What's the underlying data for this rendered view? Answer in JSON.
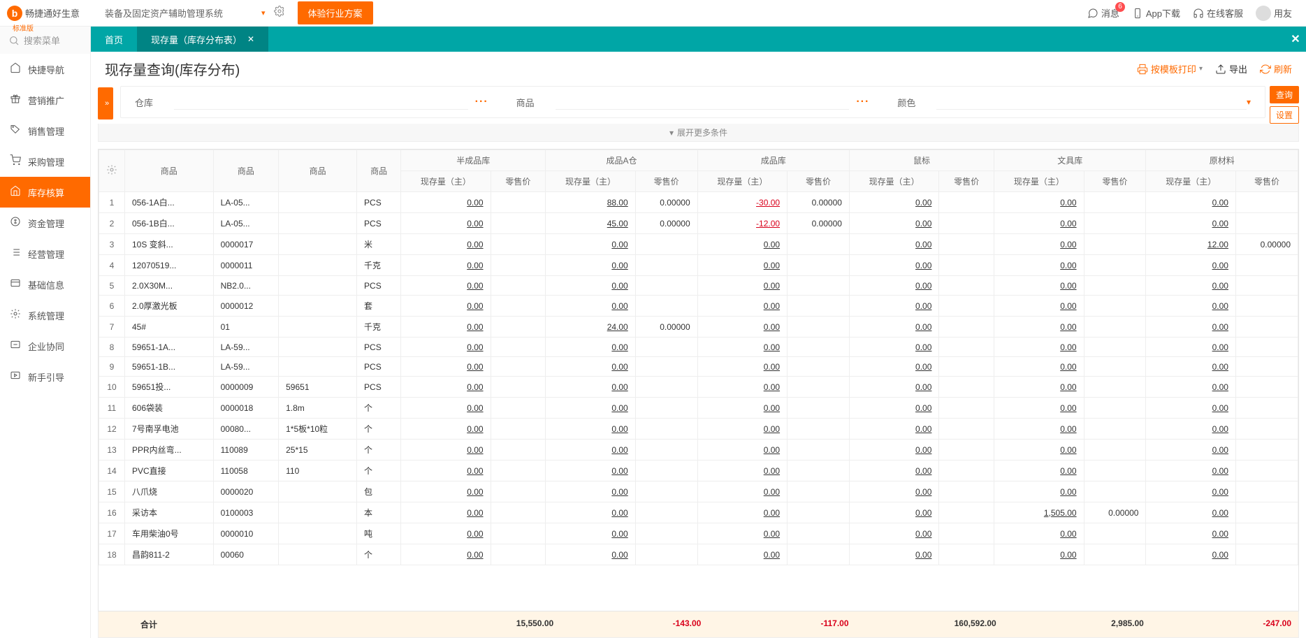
{
  "header": {
    "brand": "畅捷通好生意",
    "brand_sub": "标准版",
    "system_name": "装备及固定资产辅助管理系统",
    "try_btn": "体验行业方案",
    "msg_label": "消息",
    "msg_count": "6",
    "app_dl": "App下载",
    "cs": "在线客服",
    "user": "用友"
  },
  "sidebar": {
    "search": "搜索菜单",
    "items": [
      {
        "label": "快捷导航",
        "icon": "home"
      },
      {
        "label": "营销推广",
        "icon": "gift"
      },
      {
        "label": "销售管理",
        "icon": "tag"
      },
      {
        "label": "采购管理",
        "icon": "cart"
      },
      {
        "label": "库存核算",
        "icon": "house",
        "active": true
      },
      {
        "label": "资金管理",
        "icon": "coin"
      },
      {
        "label": "经营管理",
        "icon": "list"
      },
      {
        "label": "基础信息",
        "icon": "card"
      },
      {
        "label": "系统管理",
        "icon": "gear"
      },
      {
        "label": "企业协同",
        "icon": "link"
      },
      {
        "label": "新手引导",
        "icon": "play"
      }
    ]
  },
  "tabs": {
    "home": "首页",
    "active": "现存量（库存分布表）"
  },
  "page": {
    "title": "现存量查询(库存分布)",
    "print": "按模板打印",
    "export": "导出",
    "refresh": "刷新"
  },
  "filters": {
    "warehouse": "仓库",
    "product": "商品",
    "color": "颜色",
    "search_btn": "查询",
    "setting_btn": "设置",
    "expand": "展开更多条件"
  },
  "table": {
    "group_headers": [
      "半成品库",
      "成品A仓",
      "成品库",
      "鼠标",
      "文具库",
      "原材料"
    ],
    "col_product": "商品",
    "sub_qty": "现存量（主）",
    "sub_price": "零售价",
    "rows": [
      {
        "p1": "056-1A白...",
        "p2": "LA-05...",
        "p3": "",
        "unit": "PCS",
        "v": [
          [
            "0.00",
            ""
          ],
          [
            "88.00",
            "0.00000"
          ],
          [
            "-30.00",
            "0.00000"
          ],
          [
            "0.00",
            ""
          ],
          [
            "0.00",
            ""
          ],
          [
            "0.00",
            ""
          ]
        ]
      },
      {
        "p1": "056-1B白...",
        "p2": "LA-05...",
        "p3": "",
        "unit": "PCS",
        "v": [
          [
            "0.00",
            ""
          ],
          [
            "45.00",
            "0.00000"
          ],
          [
            "-12.00",
            "0.00000"
          ],
          [
            "0.00",
            ""
          ],
          [
            "0.00",
            ""
          ],
          [
            "0.00",
            ""
          ]
        ]
      },
      {
        "p1": "10S 变斜...",
        "p2": "0000017",
        "p3": "",
        "unit": "米",
        "v": [
          [
            "0.00",
            ""
          ],
          [
            "0.00",
            ""
          ],
          [
            "0.00",
            ""
          ],
          [
            "0.00",
            ""
          ],
          [
            "0.00",
            ""
          ],
          [
            "12.00",
            "0.00000"
          ]
        ]
      },
      {
        "p1": "12070519...",
        "p2": "0000011",
        "p3": "",
        "unit": "千克",
        "v": [
          [
            "0.00",
            ""
          ],
          [
            "0.00",
            ""
          ],
          [
            "0.00",
            ""
          ],
          [
            "0.00",
            ""
          ],
          [
            "0.00",
            ""
          ],
          [
            "0.00",
            ""
          ]
        ]
      },
      {
        "p1": "2.0X30M...",
        "p2": "NB2.0...",
        "p3": "",
        "unit": "PCS",
        "v": [
          [
            "0.00",
            ""
          ],
          [
            "0.00",
            ""
          ],
          [
            "0.00",
            ""
          ],
          [
            "0.00",
            ""
          ],
          [
            "0.00",
            ""
          ],
          [
            "0.00",
            ""
          ]
        ]
      },
      {
        "p1": "2.0厚激光板",
        "p2": "0000012",
        "p3": "",
        "unit": "套",
        "v": [
          [
            "0.00",
            ""
          ],
          [
            "0.00",
            ""
          ],
          [
            "0.00",
            ""
          ],
          [
            "0.00",
            ""
          ],
          [
            "0.00",
            ""
          ],
          [
            "0.00",
            ""
          ]
        ]
      },
      {
        "p1": "45#",
        "p2": "01",
        "p3": "",
        "unit": "千克",
        "v": [
          [
            "0.00",
            ""
          ],
          [
            "24.00",
            "0.00000"
          ],
          [
            "0.00",
            ""
          ],
          [
            "0.00",
            ""
          ],
          [
            "0.00",
            ""
          ],
          [
            "0.00",
            ""
          ]
        ]
      },
      {
        "p1": "59651-1A...",
        "p2": "LA-59...",
        "p3": "",
        "unit": "PCS",
        "v": [
          [
            "0.00",
            ""
          ],
          [
            "0.00",
            ""
          ],
          [
            "0.00",
            ""
          ],
          [
            "0.00",
            ""
          ],
          [
            "0.00",
            ""
          ],
          [
            "0.00",
            ""
          ]
        ]
      },
      {
        "p1": "59651-1B...",
        "p2": "LA-59...",
        "p3": "",
        "unit": "PCS",
        "v": [
          [
            "0.00",
            ""
          ],
          [
            "0.00",
            ""
          ],
          [
            "0.00",
            ""
          ],
          [
            "0.00",
            ""
          ],
          [
            "0.00",
            ""
          ],
          [
            "0.00",
            ""
          ]
        ]
      },
      {
        "p1": "59651投...",
        "p2": "0000009",
        "p3": "59651",
        "unit": "PCS",
        "v": [
          [
            "0.00",
            ""
          ],
          [
            "0.00",
            ""
          ],
          [
            "0.00",
            ""
          ],
          [
            "0.00",
            ""
          ],
          [
            "0.00",
            ""
          ],
          [
            "0.00",
            ""
          ]
        ]
      },
      {
        "p1": "606袋装",
        "p2": "0000018",
        "p3": "1.8m",
        "unit": "个",
        "v": [
          [
            "0.00",
            ""
          ],
          [
            "0.00",
            ""
          ],
          [
            "0.00",
            ""
          ],
          [
            "0.00",
            ""
          ],
          [
            "0.00",
            ""
          ],
          [
            "0.00",
            ""
          ]
        ]
      },
      {
        "p1": "7号南孚电池",
        "p2": "00080...",
        "p3": "1*5板*10粒",
        "unit": "个",
        "v": [
          [
            "0.00",
            ""
          ],
          [
            "0.00",
            ""
          ],
          [
            "0.00",
            ""
          ],
          [
            "0.00",
            ""
          ],
          [
            "0.00",
            ""
          ],
          [
            "0.00",
            ""
          ]
        ]
      },
      {
        "p1": "PPR内丝弯...",
        "p2": "110089",
        "p3": "25*15",
        "unit": "个",
        "v": [
          [
            "0.00",
            ""
          ],
          [
            "0.00",
            ""
          ],
          [
            "0.00",
            ""
          ],
          [
            "0.00",
            ""
          ],
          [
            "0.00",
            ""
          ],
          [
            "0.00",
            ""
          ]
        ]
      },
      {
        "p1": "PVC直接",
        "p2": "110058",
        "p3": "110",
        "unit": "个",
        "v": [
          [
            "0.00",
            ""
          ],
          [
            "0.00",
            ""
          ],
          [
            "0.00",
            ""
          ],
          [
            "0.00",
            ""
          ],
          [
            "0.00",
            ""
          ],
          [
            "0.00",
            ""
          ]
        ]
      },
      {
        "p1": "八爪烧",
        "p2": "0000020",
        "p3": "",
        "unit": "包",
        "v": [
          [
            "0.00",
            ""
          ],
          [
            "0.00",
            ""
          ],
          [
            "0.00",
            ""
          ],
          [
            "0.00",
            ""
          ],
          [
            "0.00",
            ""
          ],
          [
            "0.00",
            ""
          ]
        ]
      },
      {
        "p1": "采访本",
        "p2": "0100003",
        "p3": "",
        "unit": "本",
        "v": [
          [
            "0.00",
            ""
          ],
          [
            "0.00",
            ""
          ],
          [
            "0.00",
            ""
          ],
          [
            "0.00",
            ""
          ],
          [
            "1,505.00",
            "0.00000"
          ],
          [
            "0.00",
            ""
          ]
        ]
      },
      {
        "p1": "车用柴油0号",
        "p2": "0000010",
        "p3": "",
        "unit": "吨",
        "v": [
          [
            "0.00",
            ""
          ],
          [
            "0.00",
            ""
          ],
          [
            "0.00",
            ""
          ],
          [
            "0.00",
            ""
          ],
          [
            "0.00",
            ""
          ],
          [
            "0.00",
            ""
          ]
        ]
      },
      {
        "p1": "昌韵811-2",
        "p2": "00060",
        "p3": "",
        "unit": "个",
        "v": [
          [
            "0.00",
            ""
          ],
          [
            "0.00",
            ""
          ],
          [
            "0.00",
            ""
          ],
          [
            "0.00",
            ""
          ],
          [
            "0.00",
            ""
          ],
          [
            "0.00",
            ""
          ]
        ]
      }
    ],
    "totals": {
      "label": "合计",
      "values": [
        "15,550.00",
        "-143.00",
        "-117.00",
        "160,592.00",
        "2,985.00",
        "-247.00"
      ]
    }
  }
}
